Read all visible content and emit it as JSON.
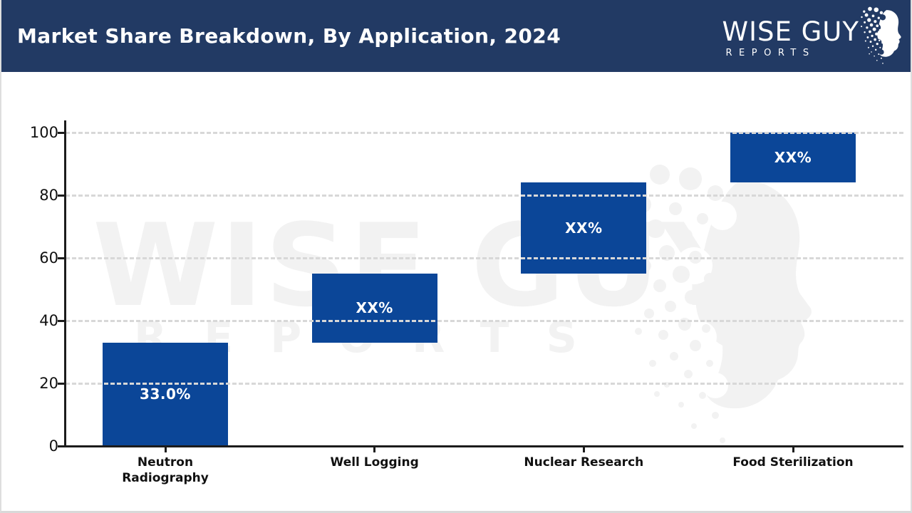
{
  "header": {
    "title": "Market Share Breakdown, By Application, 2024"
  },
  "brand": {
    "line1": "WISE GUY",
    "line2": "REPORTS"
  },
  "watermark": {
    "line1": "WISE GUY",
    "line2": "REPORTS"
  },
  "chart_data": {
    "type": "bar",
    "subtype": "waterfall",
    "title": "Market Share Breakdown, By Application, 2024",
    "xlabel": "",
    "ylabel": "",
    "ylim": [
      0,
      105
    ],
    "yticks": [
      0,
      20,
      40,
      60,
      80,
      100
    ],
    "grid": "dashed-horizontal",
    "legend": "none",
    "bar_color": "#0b4698",
    "categories": [
      "Neutron\nRadiography",
      "Well Logging",
      "Nuclear Research",
      "Food Sterilization"
    ],
    "segments": [
      {
        "category": "Neutron Radiography",
        "from": 0,
        "to": 33,
        "increment": 33,
        "label": "33.0%"
      },
      {
        "category": "Well Logging",
        "from": 33,
        "to": 55,
        "increment": 22,
        "label": "XX%"
      },
      {
        "category": "Nuclear Research",
        "from": 55,
        "to": 84,
        "increment": 29,
        "label": "XX%"
      },
      {
        "category": "Food Sterilization",
        "from": 84,
        "to": 100,
        "increment": 16,
        "label": "XX%"
      }
    ]
  }
}
